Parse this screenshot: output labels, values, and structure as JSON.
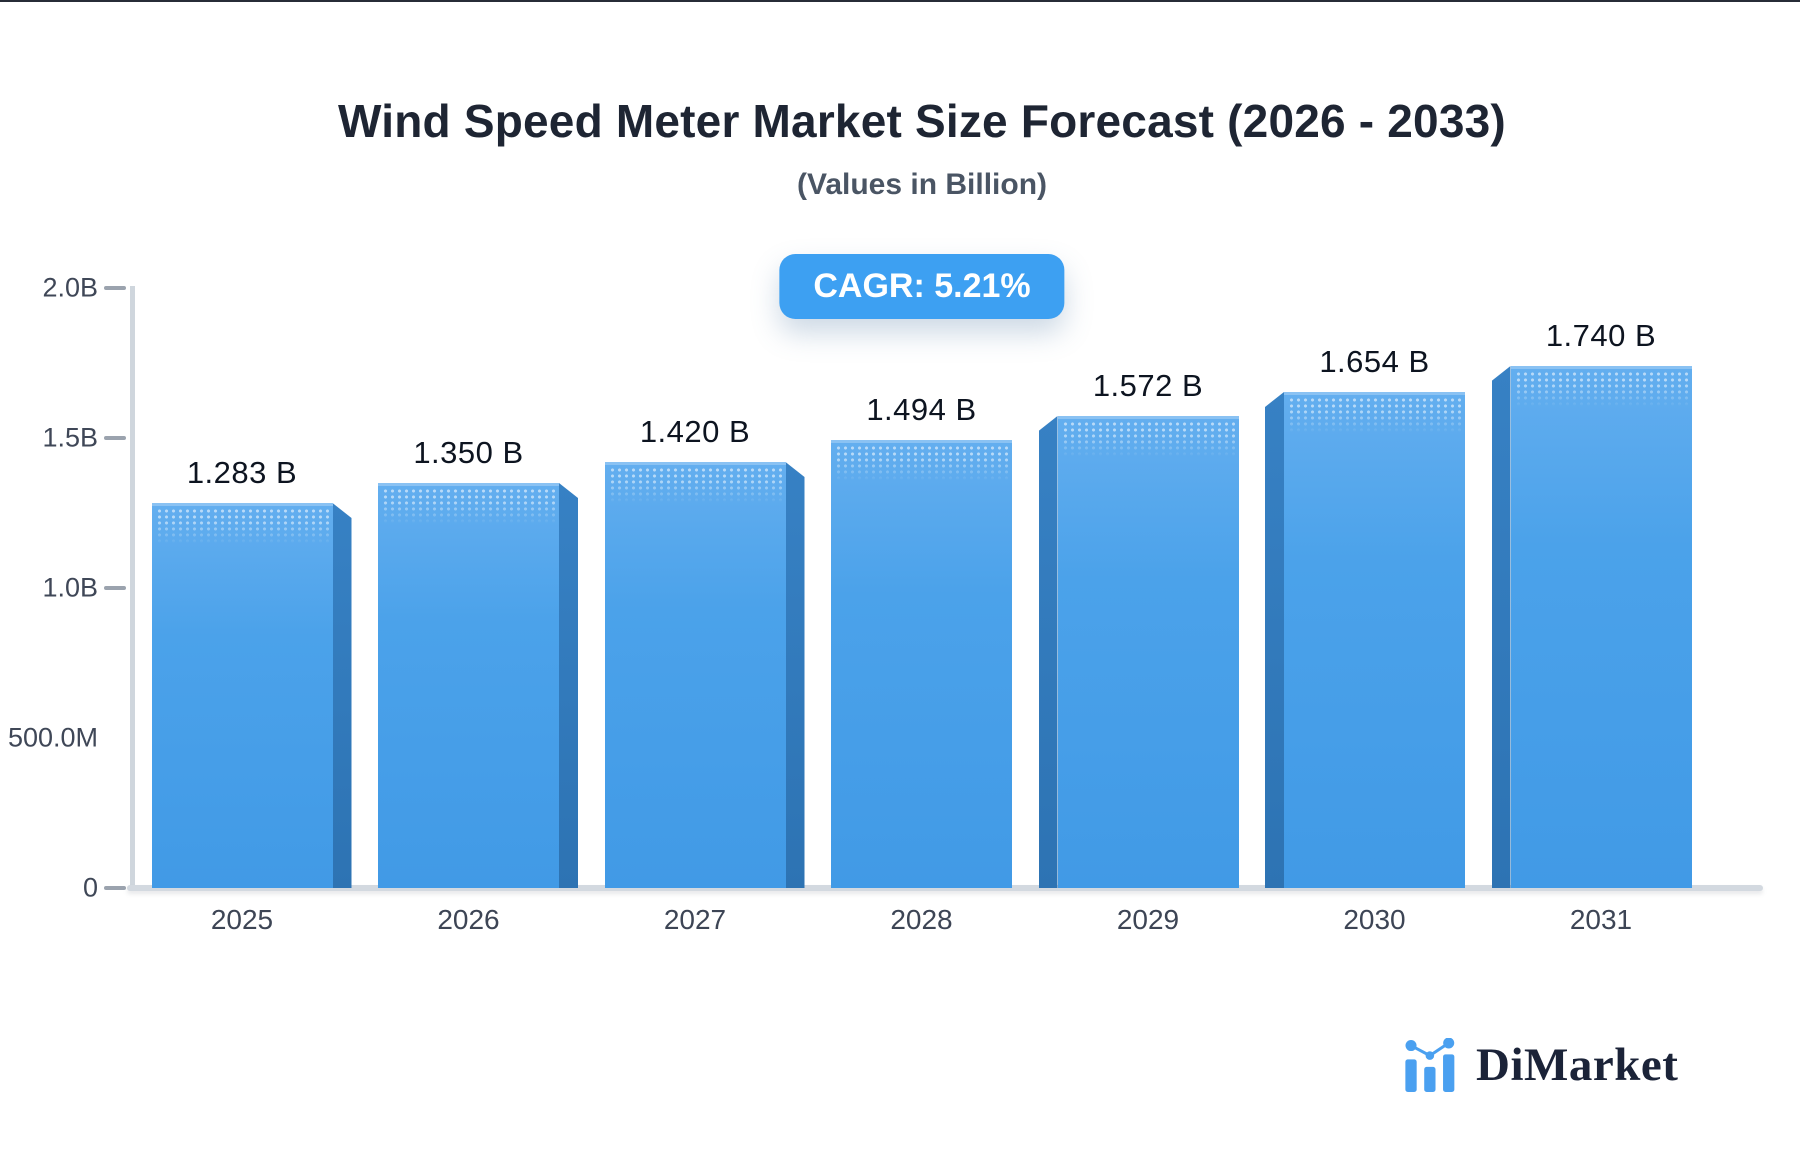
{
  "header": {
    "title": "Wind Speed Meter Market Size Forecast (2026 - 2033)",
    "subtitle": "(Values in Billion)",
    "cagr_badge_label": "CAGR: 5.21%"
  },
  "chart_data": {
    "type": "bar",
    "title": "Wind Speed Meter Market Size Forecast (2026 - 2033)",
    "subtitle": "(Values in Billion)",
    "annotation": "CAGR: 5.21%",
    "categories": [
      "2025",
      "2026",
      "2027",
      "2028",
      "2029",
      "2030",
      "2031"
    ],
    "values": [
      1.283,
      1.35,
      1.42,
      1.494,
      1.572,
      1.654,
      1.74
    ],
    "bars": [
      {
        "year": "2025",
        "value": 1.283,
        "label": "1.283 B",
        "side": "right"
      },
      {
        "year": "2026",
        "value": 1.35,
        "label": "1.350 B",
        "side": "right"
      },
      {
        "year": "2027",
        "value": 1.42,
        "label": "1.420 B",
        "side": "right"
      },
      {
        "year": "2028",
        "value": 1.494,
        "label": "1.494 B",
        "side": "none"
      },
      {
        "year": "2029",
        "value": 1.572,
        "label": "1.572 B",
        "side": "left"
      },
      {
        "year": "2030",
        "value": 1.654,
        "label": "1.654 B",
        "side": "left"
      },
      {
        "year": "2031",
        "value": 1.74,
        "label": "1.740 B",
        "side": "left"
      }
    ],
    "yticks": [
      {
        "label": "2.0B",
        "value": 2.0,
        "dash": true
      },
      {
        "label": "1.5B",
        "value": 1.5,
        "dash": true
      },
      {
        "label": "1.0B",
        "value": 1.0,
        "dash": true
      },
      {
        "label": "500.0M",
        "value": 0.5,
        "dash": false
      },
      {
        "label": "0",
        "value": 0.0,
        "dash": true
      }
    ],
    "ylim": [
      0,
      2.0
    ],
    "xlabel": "",
    "ylabel": "",
    "grid": false,
    "legend": "none",
    "colors": {
      "bar_face_top": "#63aeef",
      "bar_face_bottom": "#419ae6",
      "bar_side": "#2d73b3",
      "bar_top_highlight": "#8ac2f3",
      "badge_background": "#3da0f2",
      "badge_text": "#ffffff",
      "axis_line": "#cfd6dd",
      "tick_text": "#3f4757",
      "value_text": "#0d1420",
      "title_text": "#1e2533"
    }
  },
  "logo": {
    "text": "DiMarket",
    "icon": "bar-chart-logo-icon",
    "text_color": "#1b2338",
    "icon_color": "#4aa0f0"
  }
}
